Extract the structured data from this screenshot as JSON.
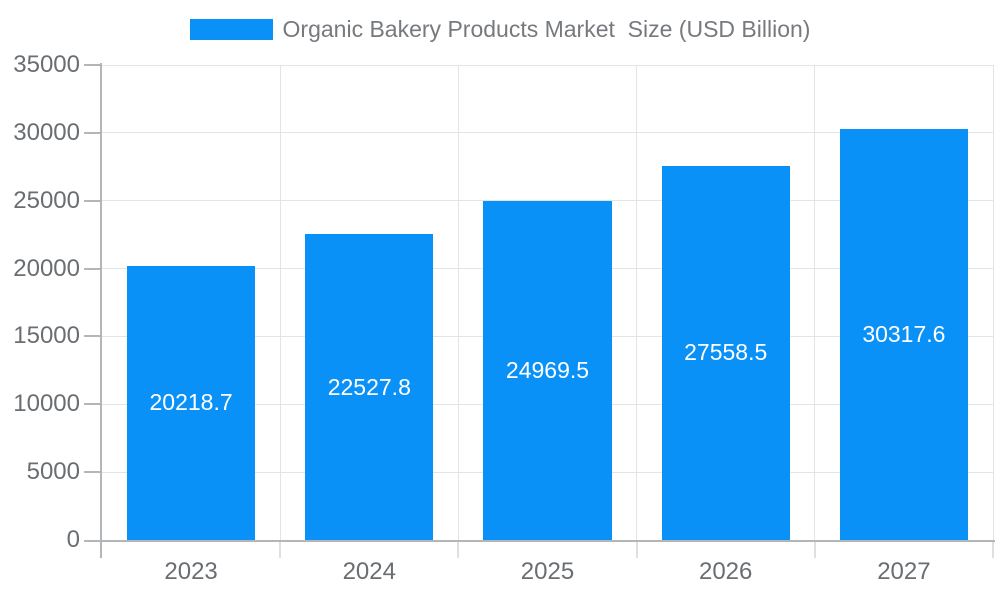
{
  "chart_data": {
    "type": "bar",
    "title": "Organic Bakery Products Market  Size (USD Billion)",
    "legend": {
      "label": "Organic Bakery Products Market  Size (USD Billion)",
      "position": "top-center"
    },
    "categories": [
      "2023",
      "2024",
      "2025",
      "2026",
      "2027"
    ],
    "values": [
      20218.7,
      22527.8,
      24969.5,
      27558.5,
      30317.6
    ],
    "xlabel": "",
    "ylabel": "",
    "ylim": [
      0,
      35000
    ],
    "yticks": [
      0,
      5000,
      10000,
      15000,
      20000,
      25000,
      30000,
      35000
    ],
    "grid": true,
    "colors": {
      "bar": "#0991f8",
      "bar_value_text": "#ffffff",
      "axis_line": "#b3b6b9",
      "x_tick": "#dde0e3",
      "gridline": "#e2e5e8",
      "axis_text": "#6a6e72",
      "legend_text": "#76797d",
      "background": "#ffffff"
    }
  }
}
